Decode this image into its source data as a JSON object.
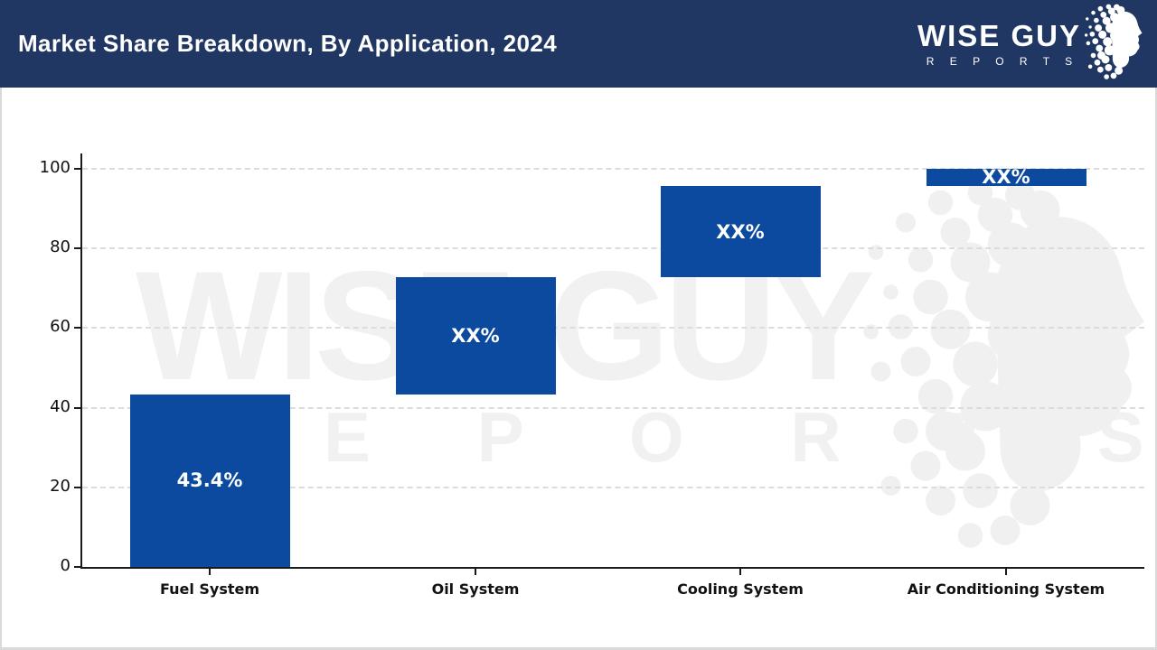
{
  "header": {
    "title": "Market Share Breakdown, By Application, 2024",
    "logo": {
      "line1": "WISE GUY",
      "line2": "R E P O R T S"
    }
  },
  "watermark": {
    "line1": "WISE GUY",
    "line2": "R E P O R T S"
  },
  "colors": {
    "header_background": "#213763",
    "bar_color": "#0b4a9e",
    "bar_label_color": "#ffffff",
    "gridline_color": "#dcdcdc",
    "axis_color": "#1a1a1a",
    "watermark_color": "#f1f1f1"
  },
  "chart_data": {
    "type": "bar",
    "variant": "waterfall",
    "title": "Market Share Breakdown, By Application, 2024",
    "categories": [
      "Fuel System",
      "Oil System",
      "Cooling System",
      "Air Conditioning System"
    ],
    "bars": [
      {
        "category": "Fuel System",
        "base": 0,
        "top": 43.4,
        "label": "43.4%"
      },
      {
        "category": "Oil System",
        "base": 43.4,
        "top": 72.7,
        "label": "XX%"
      },
      {
        "category": "Cooling System",
        "base": 72.7,
        "top": 95.7,
        "label": "XX%"
      },
      {
        "category": "Air Conditioning System",
        "base": 95.7,
        "top": 100,
        "label": "XX%"
      }
    ],
    "yticks": [
      0,
      20,
      40,
      60,
      80,
      100
    ],
    "ylim": [
      0,
      104
    ],
    "xlabel": "",
    "ylabel": "",
    "grid": "dashed-horizontal",
    "legend": "none",
    "bar_color": "#0b4a9e",
    "bar_label_color": "#ffffff"
  }
}
